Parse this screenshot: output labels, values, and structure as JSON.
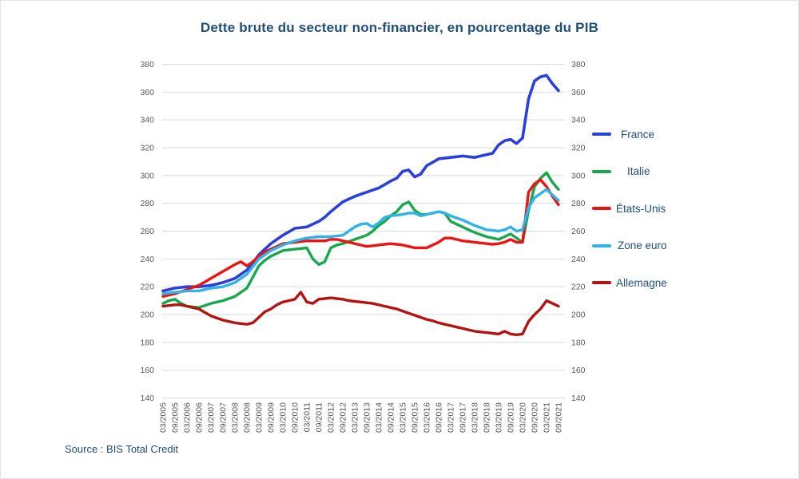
{
  "title": "Dette brute du secteur non-financier, en pourcentage du PIB",
  "source": "Source : BIS Total Credit",
  "colors": {
    "title_text": "#1f4e79",
    "axis_text": "#595959",
    "gridline": "#d9d9d9"
  },
  "legend": [
    {
      "label": "France",
      "color": "#2a3fdb"
    },
    {
      "label": "Italie",
      "color": "#17a74c"
    },
    {
      "label": "États-Unis",
      "color": "#ee1312"
    },
    {
      "label": "Zone euro",
      "color": "#2fb3e8"
    },
    {
      "label": "Allemagne",
      "color": "#b51311"
    }
  ],
  "chart_data": {
    "type": "line",
    "title": "Dette brute du secteur non-financier, en pourcentage du PIB",
    "xlabel": "",
    "ylabel": "",
    "ylim": [
      140,
      380
    ],
    "y_ticks": [
      140,
      160,
      180,
      200,
      220,
      240,
      260,
      280,
      300,
      320,
      340,
      360,
      380
    ],
    "y_axis_sides": "both",
    "grid": "horizontal",
    "legend_position": "right",
    "x_frequency": "quarterly (2005Q1 - 2021Q3), one tick label every 2 quarters",
    "x_tick_every": 2,
    "x_tick_labels": [
      "03/2005",
      "09/2005",
      "03/2006",
      "09/2006",
      "03/2007",
      "09/2007",
      "03/2008",
      "09/2008",
      "03/2009",
      "09/2009",
      "03/2010",
      "09/2010",
      "03/2011",
      "09/2011",
      "03/2012",
      "09/2012",
      "03/2013",
      "09/2013",
      "03/2014",
      "09/2014",
      "03/2015",
      "09/2015",
      "03/2016",
      "09/2016",
      "03/2017",
      "09/2017",
      "03/2018",
      "09/2018",
      "03/2019",
      "09/2019",
      "03/2020",
      "09/2020",
      "03/2021",
      "09/2021"
    ],
    "series": [
      {
        "name": "France",
        "color": "#2a3fdb",
        "width": 3.6,
        "values": [
          217,
          218,
          219,
          219.5,
          220,
          220,
          220,
          220.5,
          221,
          222,
          223,
          224.5,
          226,
          229,
          232,
          237,
          243,
          247,
          251,
          254,
          257,
          259.5,
          262,
          262.5,
          263,
          265,
          267,
          270,
          274,
          277.5,
          281,
          283,
          285,
          286.5,
          288,
          289.5,
          291,
          293.5,
          296,
          298,
          303,
          304,
          299,
          301,
          307,
          309.5,
          312,
          312.5,
          313,
          313.5,
          314,
          313.5,
          313,
          314,
          315,
          316,
          322,
          325,
          326,
          323,
          327,
          355,
          368,
          371,
          372,
          366,
          361
        ]
      },
      {
        "name": "Italie",
        "color": "#17a74c",
        "width": 3.4,
        "values": [
          208,
          210,
          211,
          208,
          206,
          205.5,
          205,
          206.5,
          208,
          209,
          210,
          211.5,
          213,
          216,
          219,
          227,
          235,
          239,
          242,
          244,
          246,
          246.5,
          247,
          247.5,
          248,
          240,
          236,
          238,
          248,
          250,
          251,
          252.5,
          254,
          255.5,
          257,
          260,
          264,
          267,
          271,
          274,
          279,
          281,
          275,
          272,
          272,
          273,
          274,
          273,
          267,
          265,
          263,
          261,
          259,
          257.5,
          256,
          255,
          254,
          256,
          258,
          255,
          252,
          275,
          292,
          298,
          302,
          295,
          290
        ]
      },
      {
        "name": "États-Unis",
        "color": "#ee1312",
        "width": 3.4,
        "values": [
          213,
          214,
          215,
          216.5,
          218,
          219.5,
          221,
          223.5,
          226,
          228.5,
          231,
          233.5,
          236,
          238,
          235,
          238,
          242,
          245,
          247,
          249,
          251,
          251.5,
          252,
          252.5,
          253,
          253,
          253,
          253,
          254,
          254,
          253,
          252,
          251,
          250,
          249,
          249.5,
          250,
          250.5,
          251,
          250.5,
          250,
          249,
          248,
          248,
          248,
          250,
          252,
          255,
          255,
          254,
          253,
          252.5,
          252,
          251.5,
          251,
          250.5,
          251,
          252,
          254,
          252,
          252,
          288,
          294,
          297,
          292,
          285,
          279
        ]
      },
      {
        "name": "Zone euro",
        "color": "#2fb3e8",
        "width": 3.4,
        "values": [
          215,
          215.5,
          216,
          216.5,
          217,
          217,
          217,
          218,
          219,
          219.5,
          220,
          221.5,
          223,
          226,
          229,
          234.5,
          240,
          243,
          246,
          248,
          250,
          251.5,
          253,
          254,
          255,
          255.5,
          256,
          256,
          256,
          256.5,
          257,
          260,
          263,
          265,
          265.5,
          263,
          266,
          270,
          271,
          271.5,
          272,
          273,
          273,
          271,
          272,
          273,
          274,
          273,
          271,
          269.5,
          268,
          266,
          264,
          262.5,
          261,
          260.5,
          260,
          261,
          263,
          260,
          261,
          277,
          284,
          287,
          290,
          286,
          282
        ]
      },
      {
        "name": "Allemagne",
        "color": "#b51311",
        "width": 3.4,
        "values": [
          206,
          206.5,
          207,
          207,
          206,
          205,
          204,
          201.5,
          199,
          197.5,
          196,
          195,
          194,
          193.5,
          193,
          194,
          198,
          202,
          204,
          207,
          209,
          210,
          211,
          216,
          209,
          208,
          211,
          211.5,
          212,
          211.5,
          211,
          210,
          209.5,
          209,
          208.5,
          208,
          207,
          206,
          205,
          204,
          202.5,
          201,
          199.5,
          198,
          196.5,
          195.5,
          194,
          193,
          192,
          191,
          190,
          189,
          188,
          187.5,
          187,
          186.5,
          186,
          188,
          186,
          185.5,
          186,
          195,
          200,
          204,
          210,
          208,
          206
        ]
      }
    ]
  }
}
